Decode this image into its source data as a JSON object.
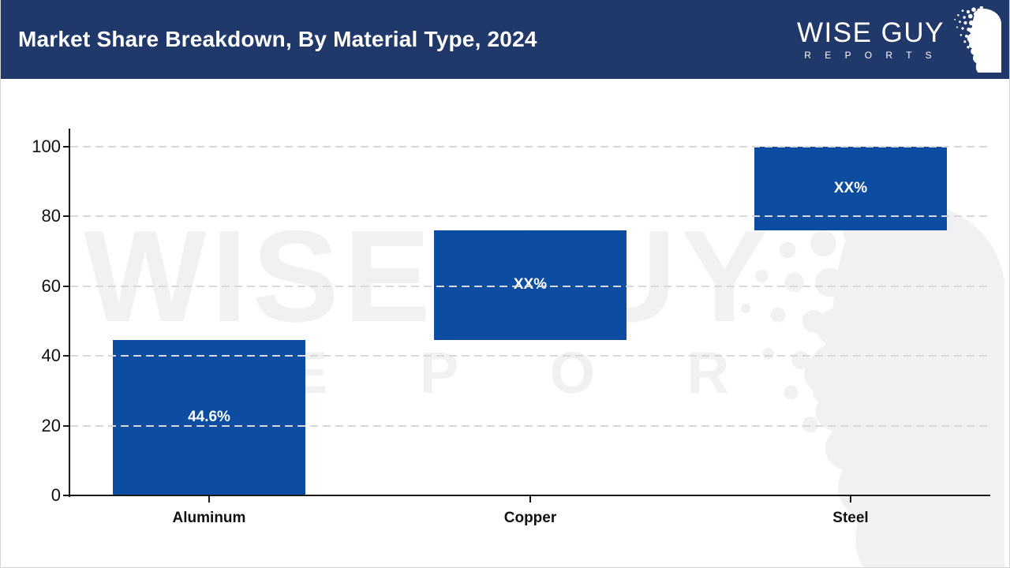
{
  "header": {
    "title": "Market Share Breakdown, By Material Type, 2024",
    "logo": {
      "name": "WISE GUY",
      "subtitle": "R E P O R T S"
    }
  },
  "watermark": {
    "line1": "WISE GUY",
    "line2": "R E P O R T S"
  },
  "chart_data": {
    "type": "bar",
    "subtype": "waterfall-floating-bars",
    "title": "Market Share Breakdown, By Material Type, 2024",
    "categories": [
      "Aluminum",
      "Copper",
      "Steel"
    ],
    "bars": [
      {
        "category": "Aluminum",
        "start": 0,
        "end": 44.6,
        "label": "44.6%"
      },
      {
        "category": "Copper",
        "start": 44.6,
        "end": 76,
        "label": "XX%"
      },
      {
        "category": "Steel",
        "start": 76,
        "end": 100,
        "label": "XX%"
      }
    ],
    "xlabel": "",
    "ylabel": "",
    "ylim": [
      0,
      100
    ],
    "yticks": [
      0,
      20,
      40,
      60,
      80,
      100
    ],
    "grid": "horizontal-dashed-over-bars",
    "legend": "none",
    "bar_color": "#0c4da1"
  },
  "colors": {
    "header_bg": "#21386b",
    "bar": "#0c4da1",
    "grid": "#d8d8d8",
    "axis": "#1a1a1a",
    "watermark": "#f1f1f4"
  }
}
